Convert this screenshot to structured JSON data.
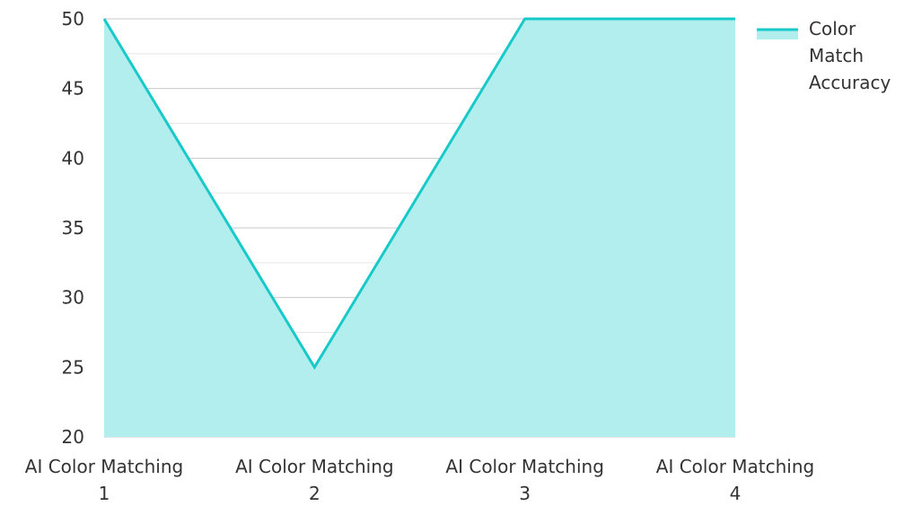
{
  "chart_data": {
    "type": "area",
    "title": "",
    "xlabel": "",
    "ylabel": "",
    "categories": [
      [
        "AI Color Matching",
        "1"
      ],
      [
        "AI Color Matching",
        "2"
      ],
      [
        "AI Color Matching",
        "3"
      ],
      [
        "AI Color Matching",
        "4"
      ]
    ],
    "series": [
      {
        "name": "Color Match Accuracy",
        "name_lines": [
          "Color",
          "Match",
          "Accuracy"
        ],
        "values": [
          50,
          25,
          50,
          50
        ],
        "line_color": "#17c9c9",
        "fill_color": "#b2eeee"
      }
    ],
    "ylim": [
      20,
      50
    ],
    "yticks": [
      20,
      25,
      30,
      35,
      40,
      45,
      50
    ],
    "grid": true,
    "legend": "top-right"
  }
}
